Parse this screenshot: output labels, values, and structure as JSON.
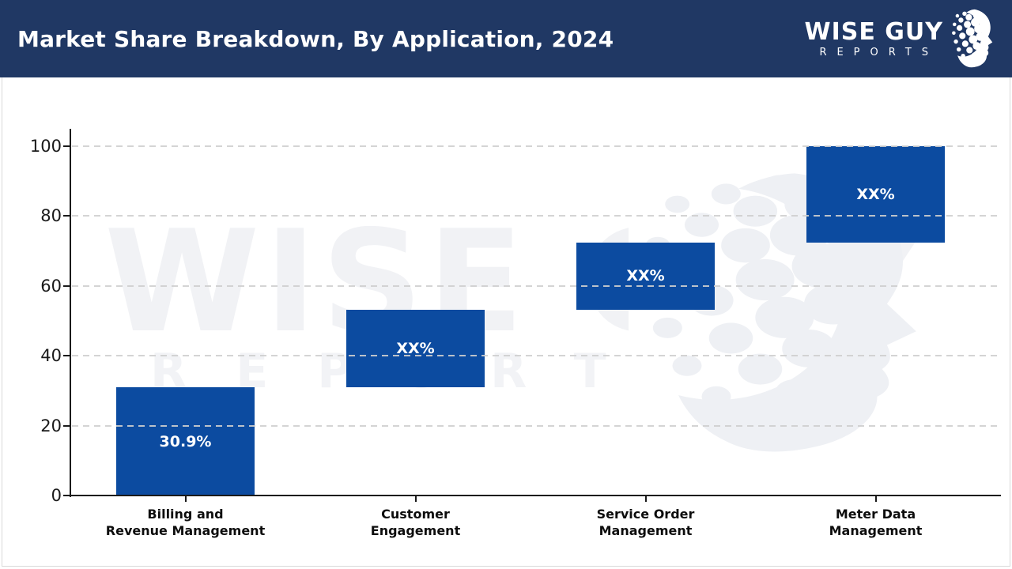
{
  "header": {
    "title": "Market Share Breakdown, By Application, 2024",
    "bg_color": "#203864",
    "logo": {
      "name": "WISE GUY",
      "tagline": "REPORTS"
    }
  },
  "watermark": {
    "line1": "WISE GUY",
    "line2": "REPORTS"
  },
  "chart_data": {
    "type": "bar",
    "subtype": "waterfall-stacked-percentage",
    "title": "Market Share Breakdown, By Application, 2024",
    "categories": [
      "Billing and\nRevenue Management",
      "Customer\nEngagement",
      "Service Order\nManagement",
      "Meter Data\nManagement"
    ],
    "segments": [
      {
        "category": "Billing and Revenue Management",
        "label": "30.9%",
        "start": 0,
        "end": 30.9,
        "value": 30.9
      },
      {
        "category": "Customer Engagement",
        "label": "XX%",
        "start": 30.9,
        "end": 53.2,
        "value": 22.3
      },
      {
        "category": "Service Order Management",
        "label": "XX%",
        "start": 53.2,
        "end": 72.5,
        "value": 19.3
      },
      {
        "category": "Meter Data Management",
        "label": "XX%",
        "start": 72.5,
        "end": 100,
        "value": 27.5
      }
    ],
    "yticks": [
      0,
      20,
      40,
      60,
      80,
      100
    ],
    "ylim": [
      0,
      105
    ],
    "bar_color": "#0C4BA0",
    "axis_color": "#1a1a1a",
    "grid": "horizontal-dashed",
    "grid_color": "#cfcfcf",
    "legend": "none"
  }
}
